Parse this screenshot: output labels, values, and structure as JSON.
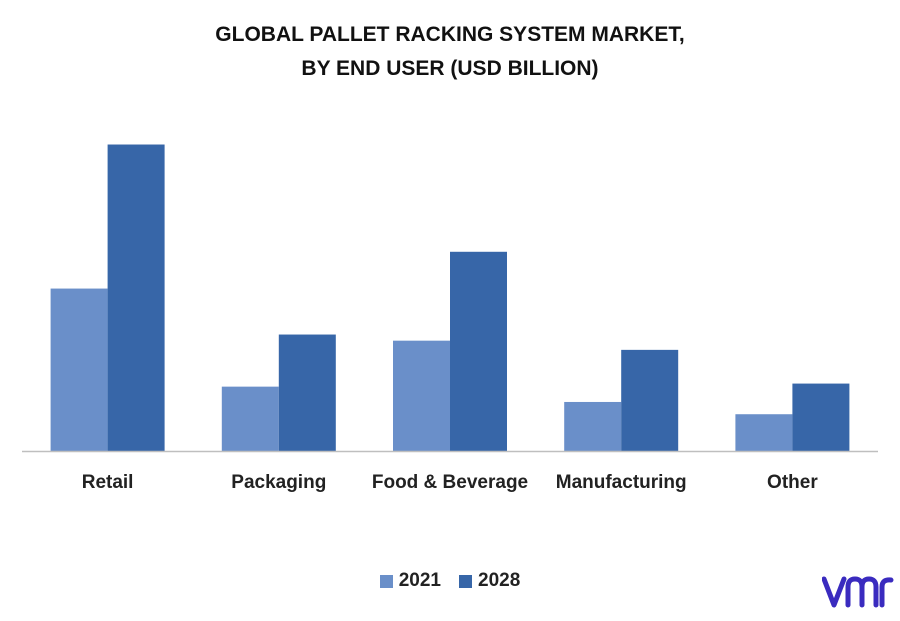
{
  "chart_data": {
    "type": "bar",
    "title_line1": "GLOBAL PALLET RACKING SYSTEM MARKET,",
    "title_line2": "BY END USER (USD BILLION)",
    "categories": [
      "Retail",
      "Packaging",
      "Food & Beverage",
      "Manufacturing",
      "Other"
    ],
    "series": [
      {
        "name": "2021",
        "values": [
          5.3,
          2.1,
          3.6,
          1.6,
          1.2
        ],
        "color": "#6a8fc9"
      },
      {
        "name": "2028",
        "values": [
          10.0,
          3.8,
          6.5,
          3.3,
          2.2
        ],
        "color": "#3766a8"
      }
    ],
    "ylim": [
      0,
      10.8
    ],
    "grid": false,
    "legend_position": "bottom"
  },
  "logo": {
    "icon": "vmr-logo-icon",
    "color": "#3a2bbf"
  }
}
